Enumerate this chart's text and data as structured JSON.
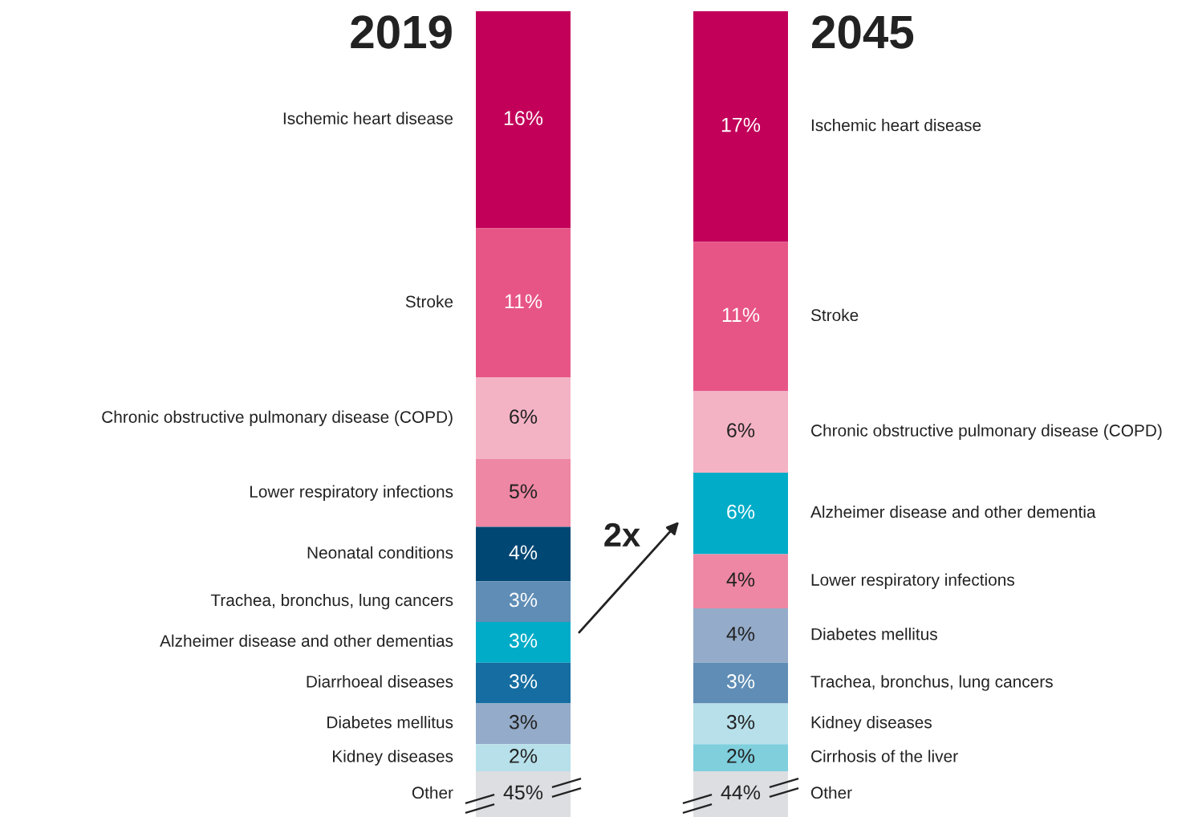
{
  "chart_data": [
    {
      "type": "other",
      "title": "2019",
      "categories": [
        "Ischemic heart disease",
        "Stroke",
        "Chronic obstructive pulmonary disease (COPD)",
        "Lower respiratory infections",
        "Neonatal conditions",
        "Trachea, bronchus, lung cancers",
        "Alzheimer disease and other dementias",
        "Diarrhoeal diseases",
        "Diabetes mellitus",
        "Kidney diseases",
        "Other"
      ],
      "values": [
        16,
        11,
        6,
        5,
        4,
        3,
        3,
        3,
        3,
        2,
        45
      ],
      "value_labels": [
        "16%",
        "11%",
        "6%",
        "5%",
        "4%",
        "3%",
        "3%",
        "3%",
        "3%",
        "2%",
        "45%"
      ],
      "colors": [
        "#c2005a",
        "#e75586",
        "#f4b3c5",
        "#ee87a3",
        "#004774",
        "#5f8db5",
        "#00acc8",
        "#156da1",
        "#94abc9",
        "#b7e0ea",
        "#dcdee2"
      ],
      "annotations": [
        "2x"
      ]
    },
    {
      "type": "other",
      "title": "2045",
      "categories": [
        "Ischemic heart disease",
        "Stroke",
        "Chronic obstructive pulmonary disease (COPD)",
        "Alzheimer disease and other dementia",
        "Lower respiratory infections",
        "Diabetes mellitus",
        "Trachea, bronchus, lung cancers",
        "Kidney diseases",
        "Cirrhosis of the liver",
        "Other"
      ],
      "values": [
        17,
        11,
        6,
        6,
        4,
        4,
        3,
        3,
        2,
        44
      ],
      "value_labels": [
        "17%",
        "11%",
        "6%",
        "6%",
        "4%",
        "4%",
        "3%",
        "3%",
        "2%",
        "44%"
      ],
      "colors": [
        "#c2005a",
        "#e75586",
        "#f4b3c5",
        "#00acc8",
        "#ee87a3",
        "#94abc9",
        "#5f8db5",
        "#b7e0ea",
        "#7fcfdd",
        "#dcdee2"
      ]
    }
  ]
}
